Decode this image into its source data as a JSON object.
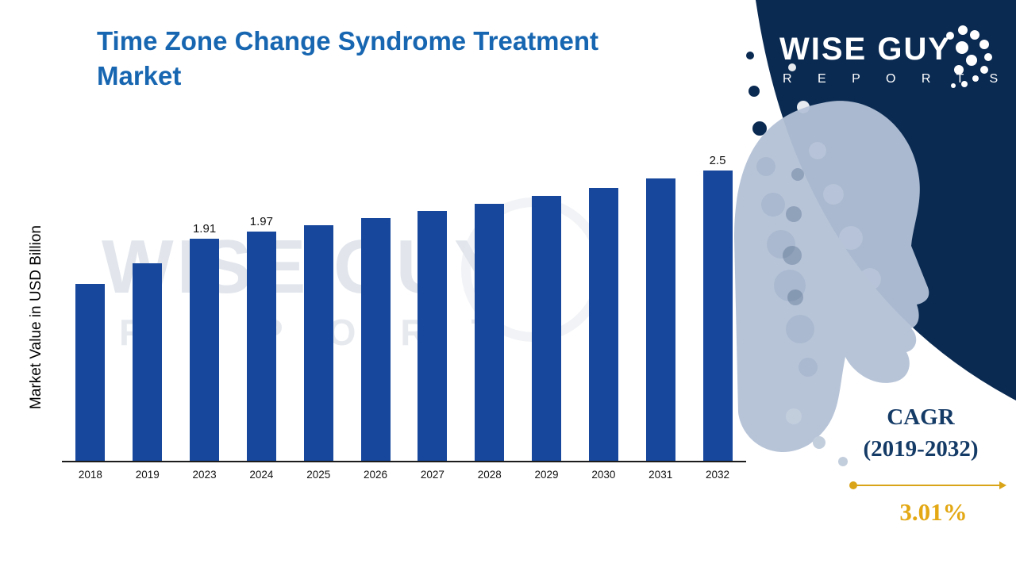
{
  "header": {
    "title": "Time Zone Change Syndrome Treatment Market",
    "title_line1": "Time Zone Change Syndrome Treatment",
    "title_line2": "Market"
  },
  "logo": {
    "line1": "WISE GUY",
    "line2": "R E P O R T S"
  },
  "watermark": {
    "line1": "WISE GUY",
    "line2": "REPORTS"
  },
  "chart_data": {
    "type": "bar",
    "title": "Time Zone Change Syndrome Treatment Market",
    "xlabel": "",
    "ylabel": "Market Value in USD Billion",
    "categories": [
      "2018",
      "2019",
      "2023",
      "2024",
      "2025",
      "2026",
      "2027",
      "2028",
      "2029",
      "2030",
      "2031",
      "2032"
    ],
    "values": [
      1.52,
      1.7,
      1.91,
      1.97,
      2.03,
      2.09,
      2.15,
      2.21,
      2.28,
      2.35,
      2.43,
      2.5
    ],
    "point_labels": {
      "2023": "1.91",
      "2024": "1.97",
      "2032": "2.5"
    },
    "ylim": [
      0,
      2.75
    ],
    "grid": false,
    "legend": "none",
    "bar_color": "#16479c"
  },
  "cagr": {
    "label_line1": "CAGR",
    "label_line2": "(2019-2032)",
    "value": "3.01%"
  },
  "colors": {
    "title_blue": "#1766b1",
    "bar_blue": "#16479c",
    "panel_navy": "#0a2a52",
    "face_gray_blue": "#b3c1d6",
    "gold": "#d9a417",
    "cagr_navy": "#143a66"
  }
}
